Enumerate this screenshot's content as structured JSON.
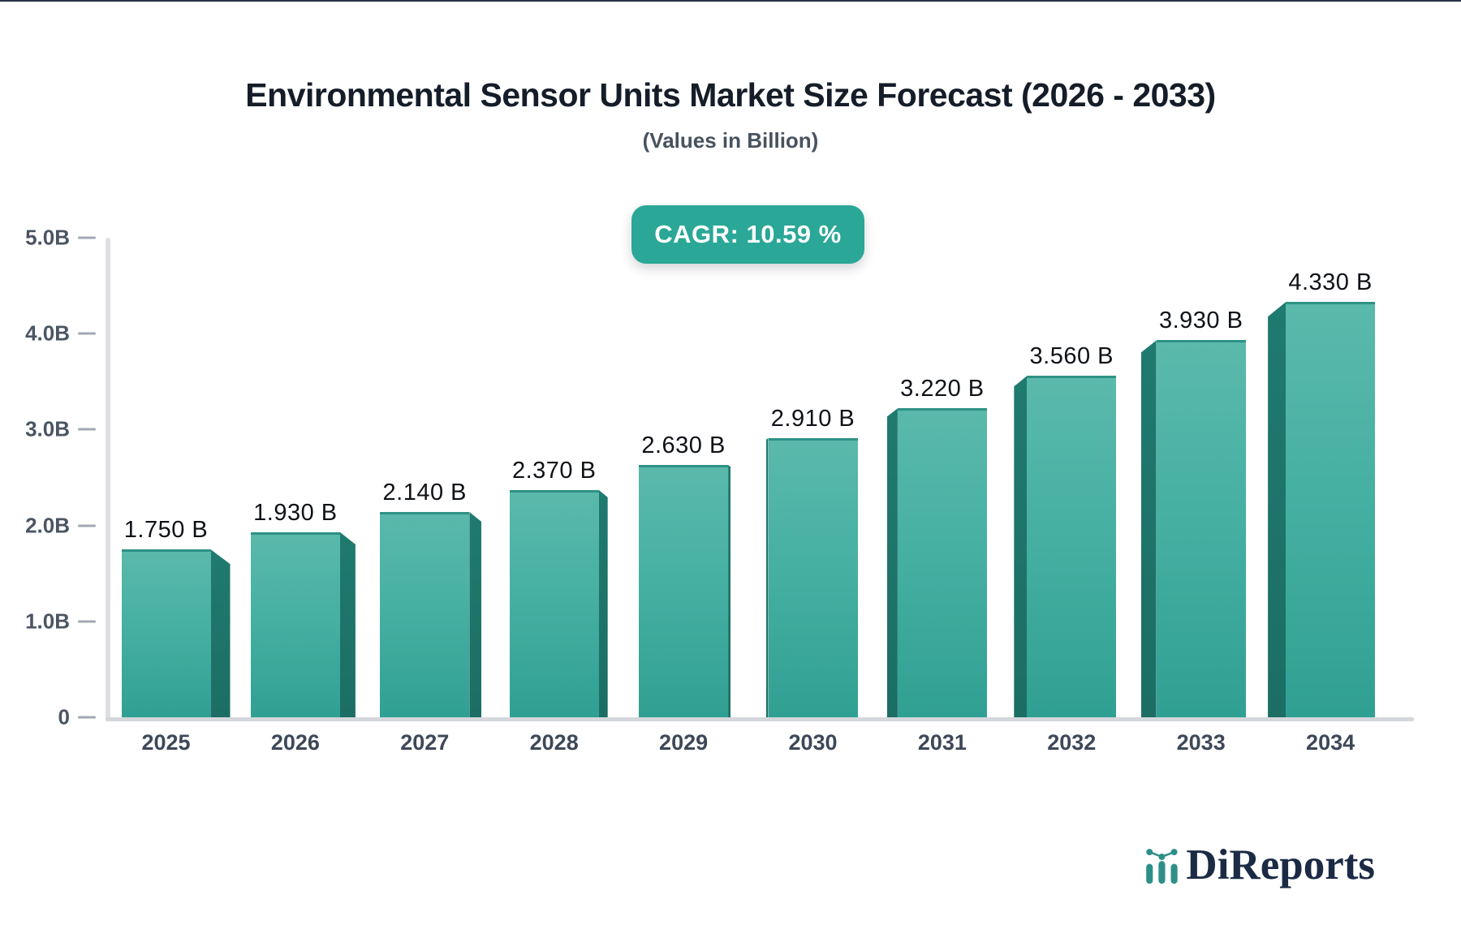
{
  "header": {
    "title": "Environmental Sensor Units Market Size Forecast (2026 - 2033)",
    "subtitle": "(Values in Billion)",
    "cagr_badge": "CAGR: 10.59 %"
  },
  "chart_data": {
    "type": "bar",
    "title": "Environmental Sensor Units Market Size Forecast (2026 - 2033)",
    "subtitle": "(Values in Billion)",
    "annotation": "CAGR: 10.59 %",
    "categories": [
      "2025",
      "2026",
      "2027",
      "2028",
      "2029",
      "2030",
      "2031",
      "2032",
      "2033",
      "2034"
    ],
    "values": [
      1.75,
      1.93,
      2.14,
      2.37,
      2.63,
      2.91,
      3.22,
      3.56,
      3.93,
      4.33
    ],
    "value_labels": [
      "1.750 B",
      "1.930 B",
      "2.140 B",
      "2.370 B",
      "2.630 B",
      "2.910 B",
      "3.220 B",
      "3.560 B",
      "3.930 B",
      "4.330 B"
    ],
    "xlabel": "",
    "ylabel": "",
    "y_ticks": [
      "0",
      "1.0B",
      "2.0B",
      "3.0B",
      "4.0B",
      "5.0B"
    ],
    "ylim": [
      0,
      5
    ],
    "grid": false,
    "legend": false,
    "bar_style": "3d-perspective-teal"
  },
  "colors": {
    "bar_face_top": "#5ab9ab",
    "bar_face_bottom": "#30a093",
    "bar_side": "#1f7a6f",
    "bar_top_edge": "#2e9285",
    "badge_background": "#2aa797",
    "badge_text": "#ffffff",
    "axis_line": "#d4d7dc",
    "tick_label": "#4b5563",
    "x_label": "#3d4858",
    "title_text": "#151d29",
    "logo_navy": "#1b2b45",
    "logo_teal": "#2e8f88"
  },
  "footer": {
    "logo_text": "DiReports"
  }
}
